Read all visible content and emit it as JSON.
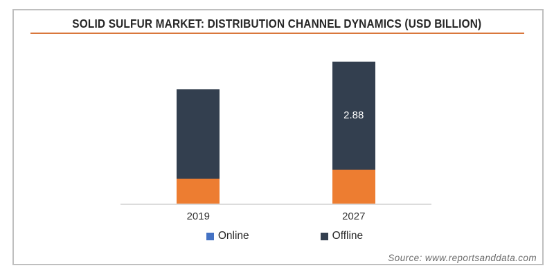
{
  "source": "Source: www.reportsanddata.com",
  "colors": {
    "title_text": "#262626",
    "accent_rule": "#D9773C",
    "axis_line": "#DCDCDC",
    "tick_text": "#333333",
    "frame_border": "#BFBFBF",
    "source_text": "#6B6B6B",
    "data_label_text": "#FFFFFF"
  },
  "chart_data": {
    "type": "bar",
    "subtype": "stacked-vertical",
    "title": "SOLID SULFUR MARKET: DISTRIBUTION CHANNEL DYNAMICS (USD BILLION)",
    "categories": [
      "2019",
      "2027"
    ],
    "series": [
      {
        "name": "Online",
        "values": [
          0.66,
          0.9
        ],
        "labels": [
          "",
          ""
        ],
        "bar_color": "#ED7D31",
        "legend_color": "#4472C4"
      },
      {
        "name": "Offline",
        "values": [
          2.38,
          2.88
        ],
        "labels": [
          "",
          "2.88"
        ],
        "bar_color": "#333F4F",
        "legend_color": "#333F4F"
      }
    ],
    "xlabel": "",
    "ylabel": "",
    "ylim": [
      0,
      3.8
    ],
    "grid": false,
    "legend_position": "bottom",
    "data_labels_shown": [
      "2.88"
    ]
  }
}
